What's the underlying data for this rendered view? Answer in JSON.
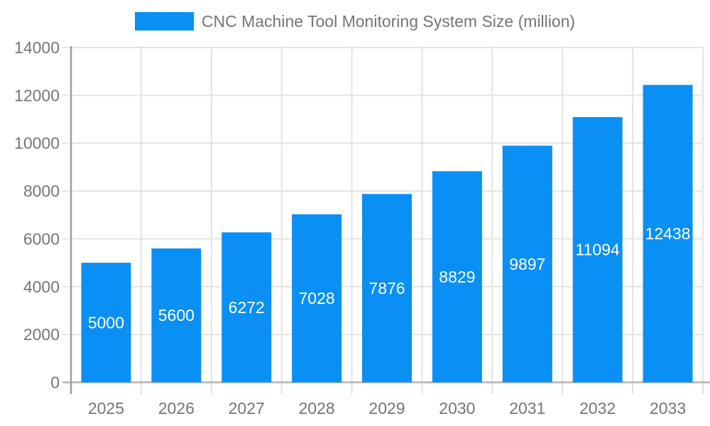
{
  "legend": {
    "label": "CNC Machine Tool Monitoring System Size (million)"
  },
  "chart_data": {
    "type": "bar",
    "title": "CNC Machine Tool Monitoring System Size (million)",
    "series_name": "CNC Machine Tool Monitoring System Size (million)",
    "categories": [
      "2025",
      "2026",
      "2027",
      "2028",
      "2029",
      "2030",
      "2031",
      "2032",
      "2033"
    ],
    "values": [
      5000,
      5600,
      6272,
      7028,
      7876,
      8829,
      9897,
      11094,
      12438
    ],
    "xlabel": "",
    "ylabel": "",
    "ylim": [
      0,
      14000
    ],
    "yticks": [
      0,
      2000,
      4000,
      6000,
      8000,
      10000,
      12000,
      14000
    ],
    "grid": true,
    "legend_position": "top-center",
    "value_labels": "inside-center-white",
    "colors": {
      "bar": "#0a90f5",
      "value_label": "#ffffff",
      "axis_text": "#757575",
      "gridline": "#e3e3e3",
      "axis_line": "#9e9e9e",
      "baseline": "#b3b3b3",
      "tick": "#e0e0e0"
    }
  }
}
